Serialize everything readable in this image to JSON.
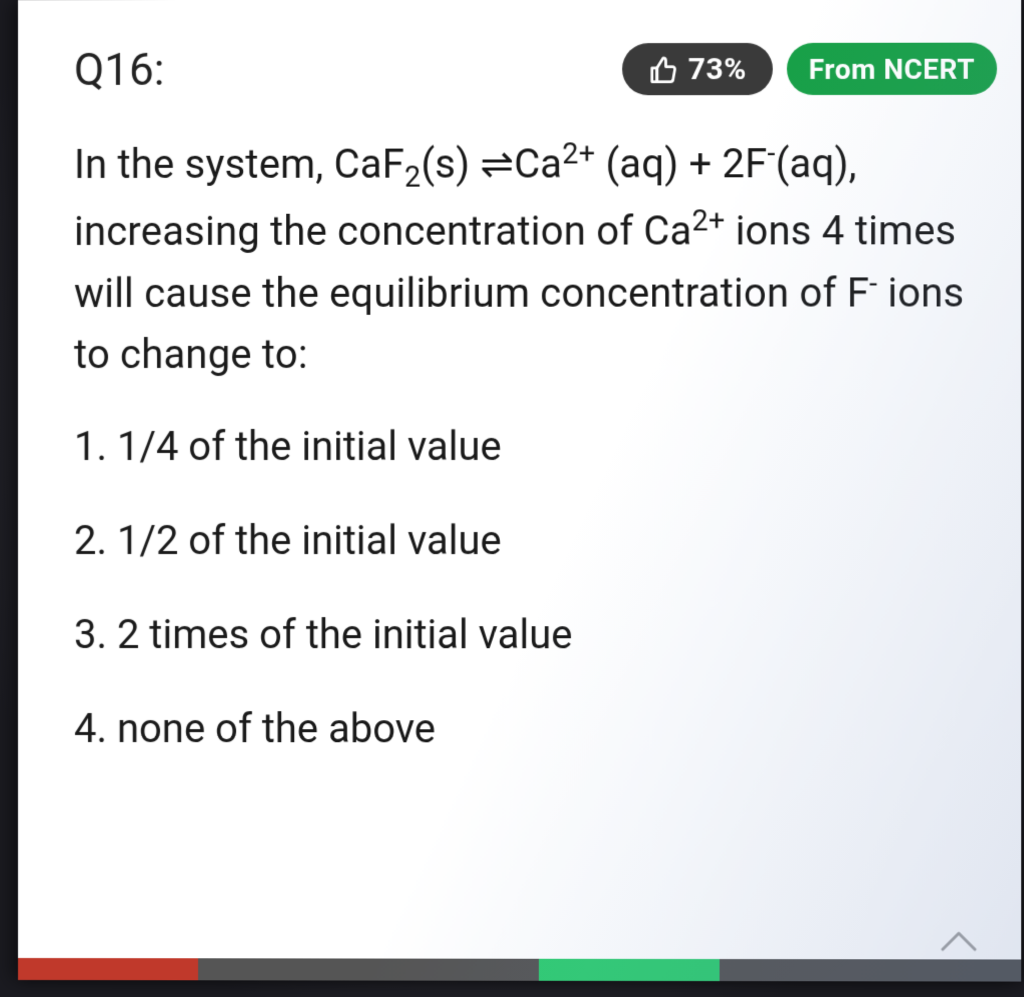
{
  "header": {
    "question_number": "Q16:",
    "like_percent": "73%",
    "source_badge": "From NCERT"
  },
  "question": {
    "prefix": "In the system, ",
    "equation_html": "CaF<sub>2</sub>(s) ⇌Ca<sup>2+</sup> (aq) + 2F<sup>-</sup>(aq),",
    "rest": " increasing the concentration of Ca",
    "ion_html": "<sup>2+</sup>",
    "rest2": " ions 4 times will cause the equilibrium concentration of F",
    "ion2_html": "<sup>-</sup>",
    "rest3": " ions to change to:"
  },
  "options": [
    {
      "num": "1.",
      "text": "1/4 of the initial value"
    },
    {
      "num": "2.",
      "text": "1/2 of the initial value"
    },
    {
      "num": "3.",
      "text": "2 times of the initial value"
    },
    {
      "num": "4.",
      "text": "none of the above"
    }
  ],
  "colors": {
    "pill_dark": "#3a3a3a",
    "pill_green": "#18a048",
    "text": "#1a1a1a",
    "screen_bg": "#ffffff",
    "strip": [
      "#c0392b",
      "#555555",
      "#2ecc71",
      "#555555"
    ]
  },
  "strip_widths": [
    "18%",
    "34%",
    "18%",
    "30%"
  ]
}
